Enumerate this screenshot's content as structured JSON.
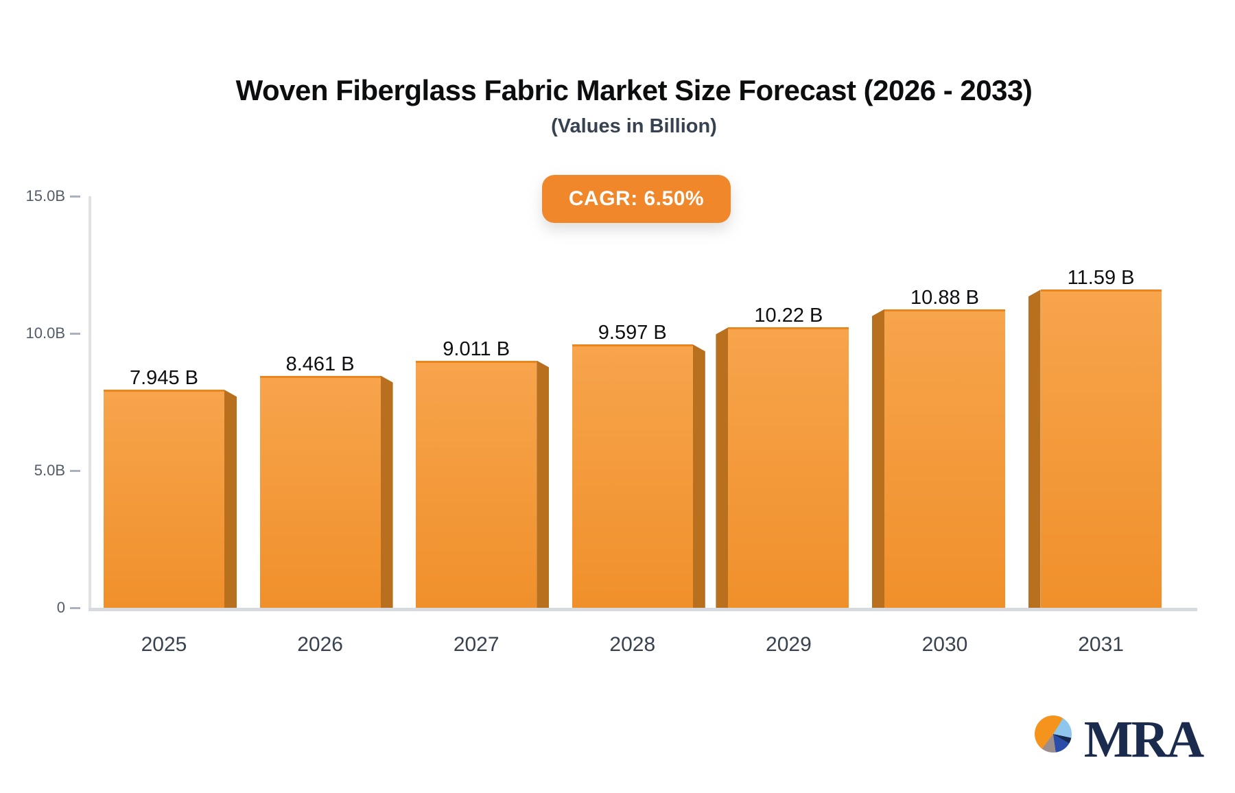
{
  "header": {
    "title": "Woven Fiberglass Fabric Market Size Forecast (2026 - 2033)",
    "subtitle": "(Values in Billion)"
  },
  "badge": {
    "label": "CAGR: 6.50%",
    "background_color": "#f0872b",
    "text_color": "#ffffff"
  },
  "chart_data": {
    "type": "bar",
    "title": "Woven Fiberglass Fabric Market Size Forecast (2026 - 2033)",
    "subtitle": "(Values in Billion)",
    "cagr": "6.50%",
    "categories": [
      "2025",
      "2026",
      "2027",
      "2028",
      "2029",
      "2030",
      "2031"
    ],
    "values": [
      7.945,
      8.461,
      9.011,
      9.597,
      10.22,
      10.88,
      11.59
    ],
    "value_labels": [
      "7.945 B",
      "8.461 B",
      "9.011 B",
      "9.597 B",
      "10.22 B",
      "10.88 B",
      "11.59 B"
    ],
    "y_ticks": [
      {
        "label": "15.0B",
        "value": 15
      },
      {
        "label": "10.0B",
        "value": 10
      },
      {
        "label": "5.0B",
        "value": 5
      },
      {
        "label": "0",
        "value": 0
      }
    ],
    "ylim": [
      0,
      15
    ],
    "xlabel": "",
    "ylabel": "",
    "grid": "off",
    "legend": "none",
    "bar_colors": {
      "face_top": "#f7a44c",
      "face_bottom": "#f0902b",
      "face_edge": "#e8861f",
      "side_3d": "#b8701e"
    }
  },
  "logo": {
    "text": "MRA",
    "text_color": "#1b2b4e",
    "pie_colors": {
      "orange": "#f5941d",
      "light_blue": "#8ec6ee",
      "navy": "#16294f",
      "royal_blue": "#2a4da8",
      "taupe": "#9d8e8e"
    }
  }
}
